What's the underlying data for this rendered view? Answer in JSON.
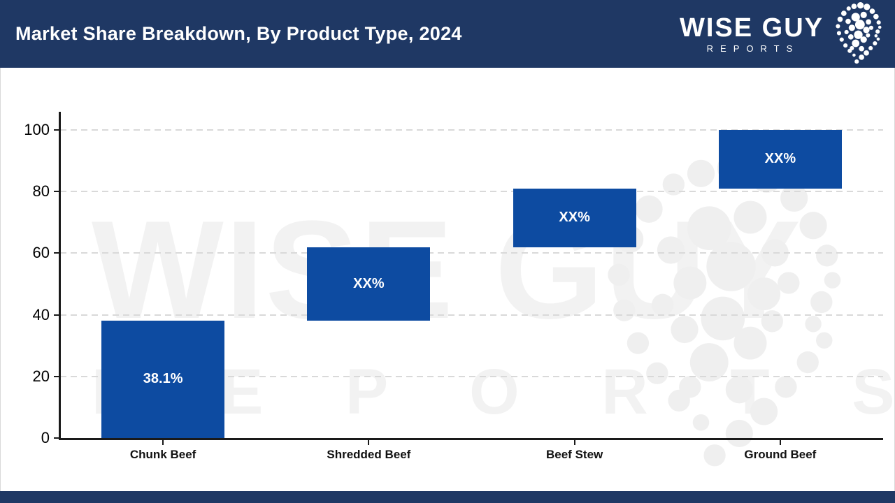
{
  "header": {
    "title": "Market Share Breakdown, By Product Type, 2024",
    "logo": {
      "line1": "WISE GUY",
      "line2": "REPORTS"
    }
  },
  "watermark": {
    "line1": "WISE GUY",
    "line2": "R E P O R T S"
  },
  "footer": {},
  "chart_data": {
    "type": "bar",
    "subtype": "waterfall",
    "title": "Market Share Breakdown, By Product Type, 2024",
    "categories": [
      "Chunk Beef",
      "Shredded Beef",
      "Beef Stew",
      "Ground Beef"
    ],
    "segments": [
      {
        "start": 0,
        "end": 38.1
      },
      {
        "start": 38.1,
        "end": 62
      },
      {
        "start": 62,
        "end": 81
      },
      {
        "start": 81,
        "end": 100
      }
    ],
    "bar_labels": [
      "38.1%",
      "XX%",
      "XX%",
      "XX%"
    ],
    "xlabel": "",
    "ylabel": "",
    "ylim": [
      0,
      100
    ],
    "yticks": [
      0,
      20,
      40,
      60,
      80,
      100
    ],
    "grid": "horizontal-dashed",
    "legend": "none",
    "bar_color": "#0d4ba1",
    "bar_label_color": "#ffffff",
    "grid_color": "#d9d9d9",
    "axis_color": "#1a1a1a"
  }
}
